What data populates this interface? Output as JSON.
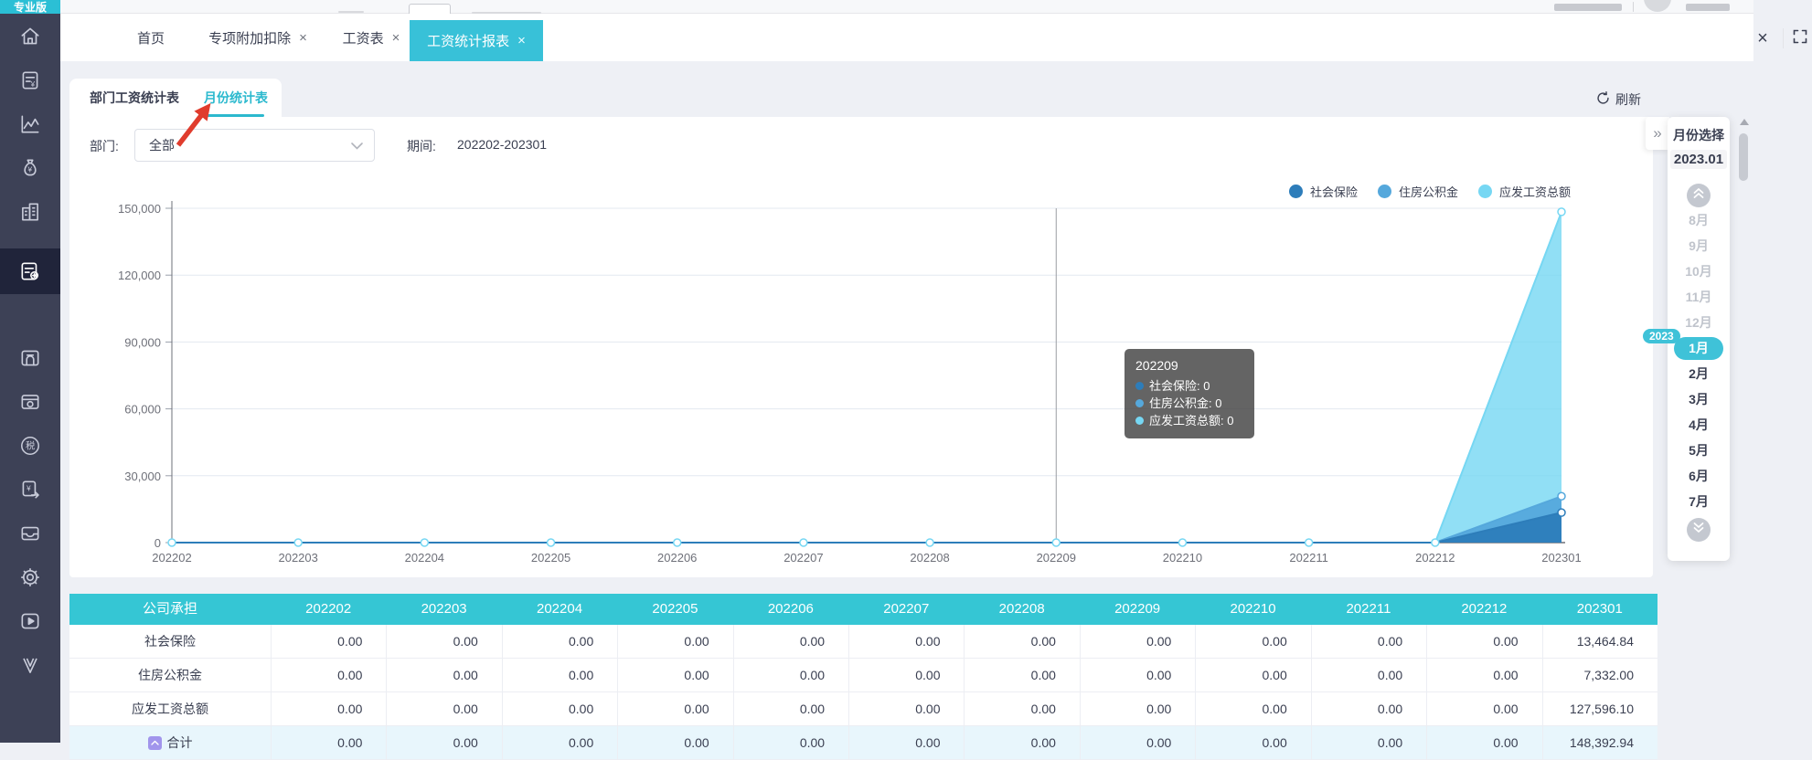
{
  "colors": {
    "primary": "#35c2d6",
    "table_header": "#35c6d4",
    "sidebar_bg": "#3d4156",
    "series_social": "#2d7dba",
    "series_housing": "#55a8dc",
    "series_total": "#76d7f3"
  },
  "app": {
    "edition_badge": "专业版"
  },
  "tabbar": {
    "tabs": [
      {
        "label": "首页",
        "closable": false,
        "active": false
      },
      {
        "label": "专项附加扣除",
        "closable": true,
        "active": false
      },
      {
        "label": "工资表",
        "closable": true,
        "active": false
      },
      {
        "label": "工资统计报表",
        "closable": true,
        "active": true
      }
    ],
    "close_glyph": "×"
  },
  "sidebar": {
    "icons": [
      "home",
      "invoice",
      "report-chart",
      "money-bag",
      "company",
      "salary-report",
      "bank",
      "funds",
      "tax",
      "doc-transfer",
      "inbox",
      "settings",
      "video",
      "v-logo"
    ],
    "active_index": 5
  },
  "subtabs": {
    "items": [
      {
        "label": "部门工资统计表",
        "active": false
      },
      {
        "label": "月份统计表",
        "active": true
      }
    ]
  },
  "toolbar": {
    "refresh_label": "刷新"
  },
  "filters": {
    "department_label": "部门:",
    "department_value": "全部",
    "period_label": "期间:",
    "period_value": "202202-202301"
  },
  "chart_data": {
    "type": "area",
    "stacked": true,
    "x": [
      "202202",
      "202203",
      "202204",
      "202205",
      "202206",
      "202207",
      "202208",
      "202209",
      "202210",
      "202211",
      "202212",
      "202301"
    ],
    "series": [
      {
        "name": "社会保险",
        "color": "#2d7dba",
        "values": [
          0,
          0,
          0,
          0,
          0,
          0,
          0,
          0,
          0,
          0,
          0,
          13464.84
        ]
      },
      {
        "name": "住房公积金",
        "color": "#55a8dc",
        "values": [
          0,
          0,
          0,
          0,
          0,
          0,
          0,
          0,
          0,
          0,
          0,
          7332.0
        ]
      },
      {
        "name": "应发工资总额",
        "color": "#76d7f3",
        "values": [
          0,
          0,
          0,
          0,
          0,
          0,
          0,
          0,
          0,
          0,
          0,
          127596.1
        ]
      }
    ],
    "ylim": [
      0,
      150000
    ],
    "yticks": [
      0,
      30000,
      60000,
      90000,
      120000,
      150000
    ],
    "grid": true,
    "legend_position": "top-right",
    "hover_index": 7
  },
  "tooltip": {
    "title": "202209",
    "items": [
      {
        "label": "社会保险",
        "value": "0"
      },
      {
        "label": "住房公积金",
        "value": "0"
      },
      {
        "label": "应发工资总额",
        "value": "0"
      }
    ]
  },
  "month_panel": {
    "collapse_glyph": "»",
    "title": "月份选择",
    "current_period": "2023.01",
    "year_badge": "2023",
    "months_dimmed": [
      "8月",
      "9月",
      "10月",
      "11月",
      "12月"
    ],
    "selected_month": "1月",
    "months_active": [
      "2月",
      "3月",
      "4月",
      "5月",
      "6月",
      "7月"
    ]
  },
  "table": {
    "header": [
      "公司承担",
      "202202",
      "202203",
      "202204",
      "202205",
      "202206",
      "202207",
      "202208",
      "202209",
      "202210",
      "202211",
      "202212",
      "202301"
    ],
    "rows": [
      {
        "label": "社会保险",
        "values": [
          "0.00",
          "0.00",
          "0.00",
          "0.00",
          "0.00",
          "0.00",
          "0.00",
          "0.00",
          "0.00",
          "0.00",
          "0.00",
          "13,464.84"
        ],
        "highlight": false
      },
      {
        "label": "住房公积金",
        "values": [
          "0.00",
          "0.00",
          "0.00",
          "0.00",
          "0.00",
          "0.00",
          "0.00",
          "0.00",
          "0.00",
          "0.00",
          "0.00",
          "7,332.00"
        ],
        "highlight": false
      },
      {
        "label": "应发工资总额",
        "values": [
          "0.00",
          "0.00",
          "0.00",
          "0.00",
          "0.00",
          "0.00",
          "0.00",
          "0.00",
          "0.00",
          "0.00",
          "0.00",
          "127,596.10"
        ],
        "highlight": false
      },
      {
        "label": "合计",
        "values": [
          "0.00",
          "0.00",
          "0.00",
          "0.00",
          "0.00",
          "0.00",
          "0.00",
          "0.00",
          "0.00",
          "0.00",
          "0.00",
          "148,392.94"
        ],
        "highlight": true,
        "icon": "calculator-icon"
      }
    ]
  }
}
